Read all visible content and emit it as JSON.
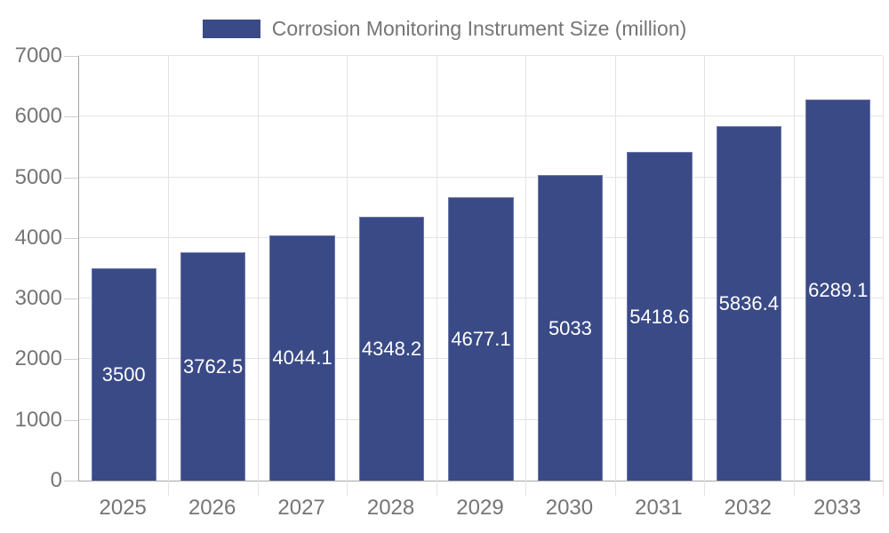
{
  "chart_data": {
    "type": "bar",
    "title": "",
    "legend": "Corrosion Monitoring Instrument Size (million)",
    "legend_position": "top",
    "categories": [
      "2025",
      "2026",
      "2027",
      "2028",
      "2029",
      "2030",
      "2031",
      "2032",
      "2033"
    ],
    "values": [
      3500,
      3762.5,
      4044.1,
      4348.2,
      4677.1,
      5033,
      5418.6,
      5836.4,
      6289.1
    ],
    "value_labels": [
      "3500",
      "3762.5",
      "4044.1",
      "4348.2",
      "4677.1",
      "5033",
      "5418.6",
      "5836.4",
      "6289.1"
    ],
    "xlabel": "",
    "ylabel": "",
    "ylim": [
      0,
      7000
    ],
    "y_ticks": [
      "0",
      "1000",
      "2000",
      "3000",
      "4000",
      "5000",
      "6000",
      "7000"
    ],
    "grid": true,
    "colors": {
      "bar": "#3a4a87",
      "bar_border": "#6d79ab",
      "grid": "#e3e3e3",
      "axis": "#a6a6a6",
      "tick": "#cfcfcf",
      "value_label": "#ffffff",
      "axis_text": "#757575",
      "legend_text": "#757575",
      "background": "#ffffff"
    }
  }
}
